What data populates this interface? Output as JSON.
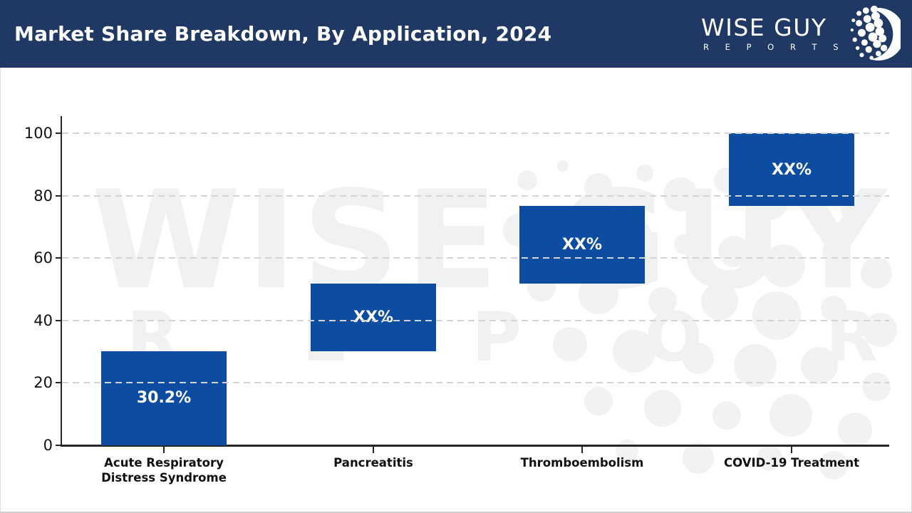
{
  "header": {
    "title": "Market Share Breakdown, By Application, 2024",
    "logo": {
      "name": "WISE GUY",
      "sub": "R E P O R T S",
      "icon": "face-profile-dots-icon"
    }
  },
  "watermark": {
    "line1": "WISE GUY",
    "line2": "R E P O R T S",
    "dots_icon": "dot-cluster-watermark-icon"
  },
  "chart_data": {
    "type": "bar",
    "variant": "floating-segment-waterfall",
    "title": "Market Share Breakdown, By Application, 2024",
    "xlabel": "",
    "ylabel": "",
    "categories": [
      [
        "Acute Respiratory",
        "Distress Syndrome"
      ],
      [
        "Pancreatitis"
      ],
      [
        "Thromboembolism"
      ],
      [
        "COVID-19 Treatment"
      ]
    ],
    "bars": [
      {
        "category": "Acute Respiratory Distress Syndrome",
        "label": "30.2%",
        "start": 0,
        "end": 30.2
      },
      {
        "category": "Pancreatitis",
        "label": "XX%",
        "start": 30.2,
        "end": 51.9
      },
      {
        "category": "Thromboembolism",
        "label": "XX%",
        "start": 51.9,
        "end": 76.6
      },
      {
        "category": "COVID-19 Treatment",
        "label": "XX%",
        "start": 76.6,
        "end": 100
      }
    ],
    "ylim": [
      0,
      100
    ],
    "yticks": [
      "0",
      "20",
      "40",
      "60",
      "80",
      "100"
    ],
    "grid": "horizontal dashed lines drawn over bars",
    "legend": "none",
    "colors": {
      "bar": "#0c4da1",
      "bar_label": "#ffffff",
      "header_bg": "#1f3864",
      "gridline": "#d4d4d4",
      "axis": "#262626",
      "watermark": "#f0f1f3",
      "background": "#ffffff"
    }
  }
}
